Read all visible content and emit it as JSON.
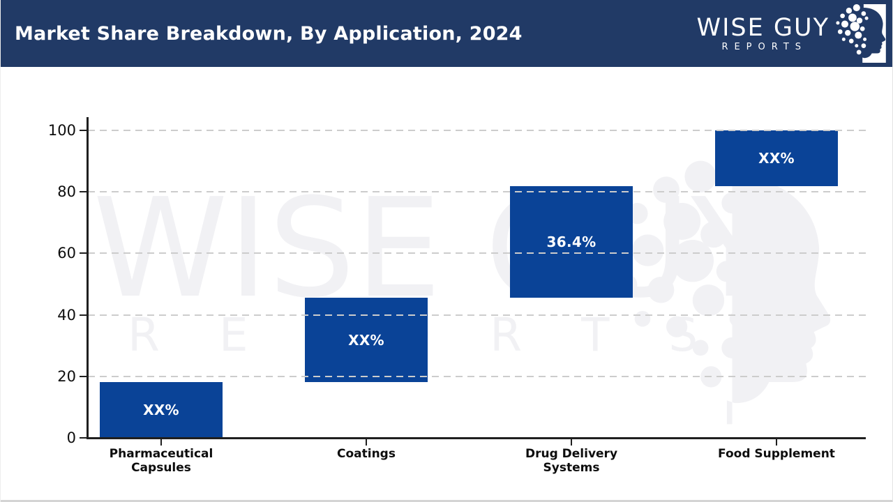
{
  "header": {
    "title": "Market Share Breakdown, By Application, 2024",
    "brand": {
      "line1": "WISE GUY",
      "line2": "REPORTS"
    }
  },
  "watermark": {
    "line1": "WISE GUY",
    "line2": "R E P O R T S"
  },
  "meta": {
    "header_bg": "#213a66",
    "bar_color": "#0a4397",
    "grid_color": "#cccccc",
    "watermark_color": "#f1f1f4"
  },
  "chart_data": {
    "type": "bar",
    "subtype": "floating-waterfall",
    "title": "Market Share Breakdown, By Application, 2024",
    "xlabel": "",
    "ylabel": "",
    "ylim": [
      0,
      105
    ],
    "yticks": [
      0,
      20,
      40,
      60,
      80,
      100
    ],
    "grid": "dashed horizontal, drawn above bars",
    "legend": "none",
    "categories": [
      "Pharmaceutical Capsules",
      "Coatings",
      "Drug Delivery Systems",
      "Food Supplement"
    ],
    "segments": [
      {
        "category": "Pharmaceutical Capsules",
        "lines": [
          "Pharmaceutical",
          "Capsules"
        ],
        "start": 0,
        "end": 18.2,
        "label": "XX%"
      },
      {
        "category": "Coatings",
        "lines": [
          "Coatings"
        ],
        "start": 18.2,
        "end": 45.5,
        "label": "XX%"
      },
      {
        "category": "Drug Delivery Systems",
        "lines": [
          "Drug Delivery",
          "Systems"
        ],
        "start": 45.5,
        "end": 81.9,
        "label": "36.4%",
        "value": 36.4
      },
      {
        "category": "Food Supplement",
        "lines": [
          "Food Supplement"
        ],
        "start": 81.9,
        "end": 100,
        "label": "XX%"
      }
    ]
  }
}
